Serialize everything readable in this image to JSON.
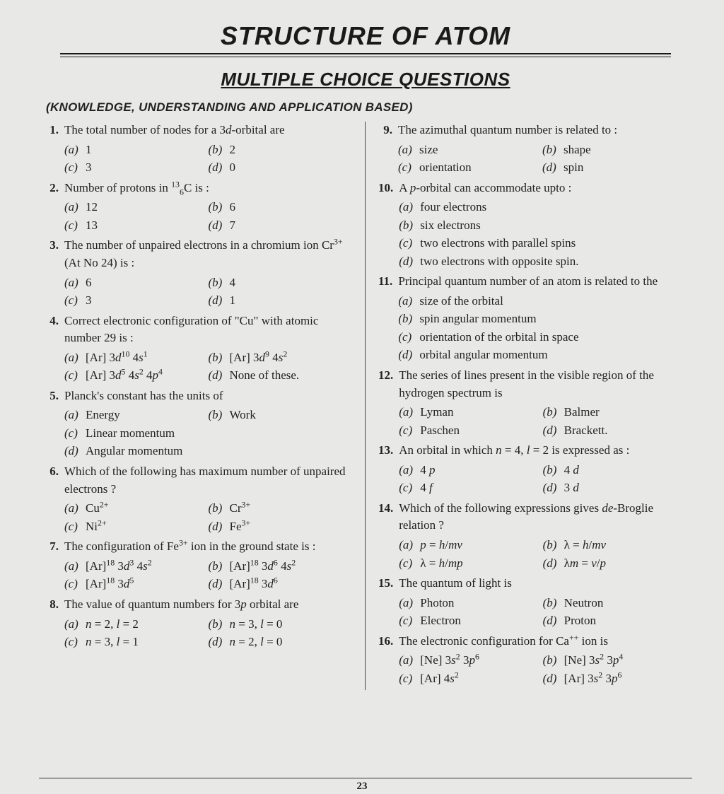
{
  "title": "STRUCTURE OF ATOM",
  "subtitle": "MULTIPLE CHOICE QUESTIONS",
  "basis": "(KNOWLEDGE, UNDERSTANDING AND APPLICATION BASED)",
  "pagenum": "23",
  "left": [
    {
      "n": "1.",
      "stem": "The total number of nodes for a 3<i>d</i>-orbital are",
      "opts": [
        [
          "(a)",
          "1"
        ],
        [
          "(b)",
          "2"
        ],
        [
          "(c)",
          "3"
        ],
        [
          "(d)",
          "0"
        ]
      ]
    },
    {
      "n": "2.",
      "stem": "Number of protons in <sup>13</sup><sub>6</sub>C is :",
      "opts": [
        [
          "(a)",
          "12"
        ],
        [
          "(b)",
          "6"
        ],
        [
          "(c)",
          "13"
        ],
        [
          "(d)",
          "7"
        ]
      ]
    },
    {
      "n": "3.",
      "stem": "The number of unpaired electrons in a chromium ion Cr<sup>3+</sup> (At No 24) is :",
      "opts": [
        [
          "(a)",
          "6"
        ],
        [
          "(b)",
          "4"
        ],
        [
          "(c)",
          "3"
        ],
        [
          "(d)",
          "1"
        ]
      ]
    },
    {
      "n": "4.",
      "stem": "Correct electronic configuration of \"Cu\" with atomic number 29 is :",
      "opts": [
        [
          "(a)",
          "[Ar] 3<i>d</i><sup>10</sup> 4<i>s</i><sup>1</sup>"
        ],
        [
          "(b)",
          "[Ar] 3<i>d</i><sup>9</sup> 4<i>s</i><sup>2</sup>"
        ],
        [
          "(c)",
          "[Ar] 3<i>d</i><sup>5</sup> 4<i>s</i><sup>2</sup> 4<i>p</i><sup>4</sup>"
        ],
        [
          "(d)",
          "None of these."
        ]
      ]
    },
    {
      "n": "5.",
      "stem": "Planck's constant has the units of",
      "opts": [
        [
          "(a)",
          "Energy"
        ],
        [
          "(b)",
          "Work"
        ],
        [
          "(c)",
          "Linear momentum"
        ],
        [
          "(d)",
          "Angular momentum"
        ]
      ],
      "full34": true
    },
    {
      "n": "6.",
      "stem": "Which of the following has maximum number of unpaired electrons ?",
      "opts": [
        [
          "(a)",
          "Cu<sup>2+</sup>"
        ],
        [
          "(b)",
          "Cr<sup>3+</sup>"
        ],
        [
          "(c)",
          "Ni<sup>2+</sup>"
        ],
        [
          "(d)",
          "Fe<sup>3+</sup>"
        ]
      ]
    },
    {
      "n": "7.",
      "stem": "The configuration of Fe<sup>3+</sup> ion in the ground state is :",
      "opts": [
        [
          "(a)",
          "[Ar]<sup>18</sup> 3<i>d</i><sup>3</sup> 4<i>s</i><sup>2</sup>"
        ],
        [
          "(b)",
          "[Ar]<sup>18</sup> 3<i>d</i><sup>6</sup> 4<i>s</i><sup>2</sup>"
        ],
        [
          "(c)",
          "[Ar]<sup>18</sup> 3<i>d</i><sup>5</sup>"
        ],
        [
          "(d)",
          "[Ar]<sup>18</sup> 3<i>d</i><sup>6</sup>"
        ]
      ]
    },
    {
      "n": "8.",
      "stem": "The value of quantum numbers for 3<i>p</i> orbital are",
      "opts": [
        [
          "(a)",
          "<i>n</i> = 2, <i>l</i> = 2"
        ],
        [
          "(b)",
          "<i>n</i> = 3, <i>l</i> = 0"
        ],
        [
          "(c)",
          "<i>n</i> = 3, <i>l</i> = 1"
        ],
        [
          "(d)",
          "<i>n</i> = 2, <i>l</i> = 0"
        ]
      ]
    }
  ],
  "right": [
    {
      "n": "9.",
      "stem": "The azimuthal quantum number is related to :",
      "opts": [
        [
          "(a)",
          "size"
        ],
        [
          "(b)",
          "shape"
        ],
        [
          "(c)",
          "orientation"
        ],
        [
          "(d)",
          "spin"
        ]
      ]
    },
    {
      "n": "10.",
      "stem": "A <i>p</i>-orbital can accommodate upto :",
      "opts": [
        [
          "(a)",
          "four electrons"
        ],
        [
          "(b)",
          "six electrons"
        ],
        [
          "(c)",
          "two electrons with parallel spins"
        ],
        [
          "(d)",
          "two electrons with opposite spin."
        ]
      ],
      "fullAll": true
    },
    {
      "n": "11.",
      "stem": "Principal quantum number of an atom is related to the",
      "opts": [
        [
          "(a)",
          "size of the orbital"
        ],
        [
          "(b)",
          "spin angular momentum"
        ],
        [
          "(c)",
          "orientation of the orbital in space"
        ],
        [
          "(d)",
          "orbital angular momentum"
        ]
      ],
      "fullAll": true
    },
    {
      "n": "12.",
      "stem": "The series of lines present in the visible region of the hydrogen spectrum is",
      "opts": [
        [
          "(a)",
          "Lyman"
        ],
        [
          "(b)",
          "Balmer"
        ],
        [
          "(c)",
          "Paschen"
        ],
        [
          "(d)",
          "Brackett."
        ]
      ]
    },
    {
      "n": "13.",
      "stem": "An orbital in which <i>n</i> = 4, <i>l</i> = 2 is expressed as :",
      "opts": [
        [
          "(a)",
          "4 <i>p</i>"
        ],
        [
          "(b)",
          "4 <i>d</i>"
        ],
        [
          "(c)",
          "4 <i>f</i>"
        ],
        [
          "(d)",
          "3 <i>d</i>"
        ]
      ]
    },
    {
      "n": "14.",
      "stem": "Which of the following expressions gives <i>de</i>-Broglie relation ?",
      "opts": [
        [
          "(a)",
          "<i>p</i> = <i>h</i>/<i>mv</i>"
        ],
        [
          "(b)",
          "λ = <i>h</i>/<i>mv</i>"
        ],
        [
          "(c)",
          "λ = <i>h</i>/<i>mp</i>"
        ],
        [
          "(d)",
          "λ<i>m</i> = <i>v</i>/<i>p</i>"
        ]
      ]
    },
    {
      "n": "15.",
      "stem": "The quantum of light is",
      "opts": [
        [
          "(a)",
          "Photon"
        ],
        [
          "(b)",
          "Neutron"
        ],
        [
          "(c)",
          "Electron"
        ],
        [
          "(d)",
          "Proton"
        ]
      ]
    },
    {
      "n": "16.",
      "stem": "The electronic configuration for Ca<sup>++</sup> ion is",
      "opts": [
        [
          "(a)",
          "[Ne] 3<i>s</i><sup>2</sup> 3<i>p</i><sup>6</sup>"
        ],
        [
          "(b)",
          "[Ne] 3<i>s</i><sup>2</sup> 3<i>p</i><sup>4</sup>"
        ],
        [
          "(c)",
          "[Ar] 4<i>s</i><sup>2</sup>"
        ],
        [
          "(d)",
          "[Ar] 3<i>s</i><sup>2</sup> 3<i>p</i><sup>6</sup>"
        ]
      ]
    }
  ]
}
